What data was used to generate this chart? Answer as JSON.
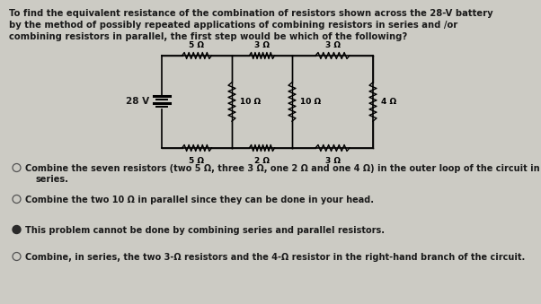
{
  "bg_color": "#cccbc4",
  "text_color": "#1a1a1a",
  "title_lines": [
    "To find the equivalent resistance of the combination of resistors shown across the 28-V battery",
    "by the method of possibly repeated applications of combining resistors in series and /or",
    "combining resistors in parallel, the first step would be which of the following?"
  ],
  "options": [
    {
      "label": "Combine the seven resistors (two 5 Ω, three 3 Ω, one 2 Ω and one 4 Ω) in the outer loop of the circuit in\n     series.",
      "selected": false
    },
    {
      "label": "Combine the two 10 Ω in parallel since they can be done in your head.",
      "selected": false
    },
    {
      "label": "This problem cannot be done by combining series and parallel resistors.",
      "selected": true
    },
    {
      "label": "Combine, in series, the two 3-Ω resistors and the 4-Ω resistor in the right-hand branch of the circuit.",
      "selected": false
    }
  ],
  "circuit": {
    "battery_label": "28 V"
  }
}
